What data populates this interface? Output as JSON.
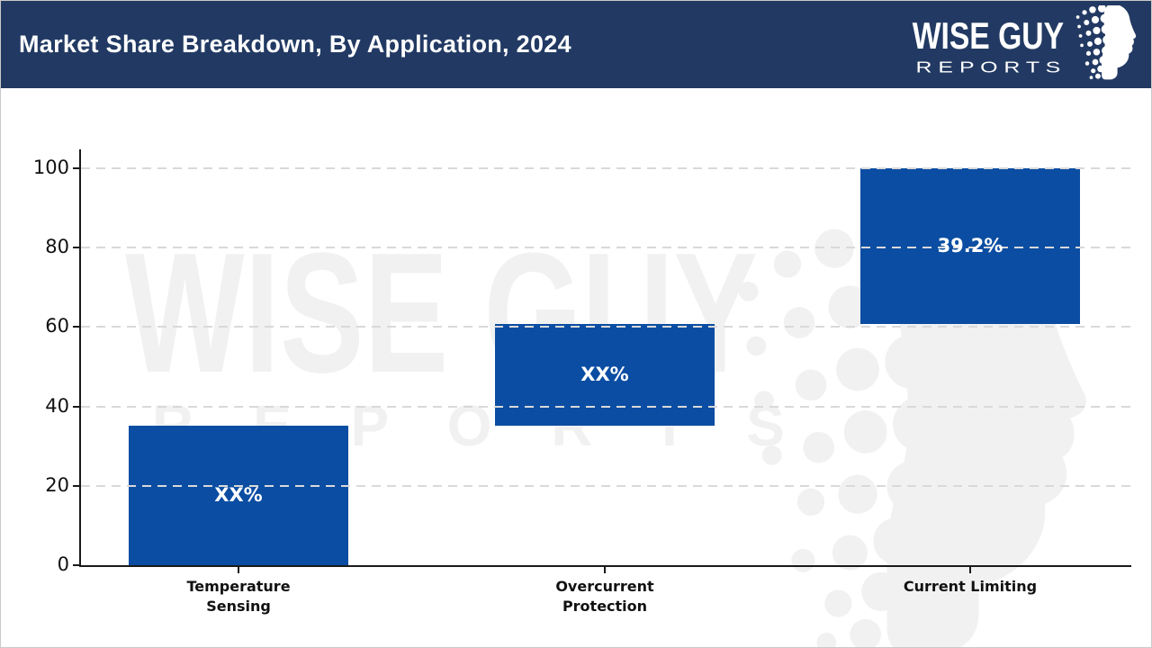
{
  "header": {
    "title": "Market Share Breakdown, By Application, 2024",
    "logo": {
      "line1": "WISE GUY",
      "line2": "R E P O R T S"
    }
  },
  "watermark": {
    "line1": "WISE GUY",
    "line2": "R E P O R T S"
  },
  "chart_data": {
    "type": "bar",
    "subtype": "waterfall",
    "title": "Market Share Breakdown, By Application, 2024",
    "categories": [
      "Temperature\nSensing",
      "Overcurrent\nProtection",
      "Current Limiting"
    ],
    "segments": [
      {
        "category": "Temperature Sensing",
        "start": 0,
        "end": 35.2,
        "value": 35.2,
        "label": "XX%"
      },
      {
        "category": "Overcurrent Protection",
        "start": 35.2,
        "end": 60.8,
        "value": 25.6,
        "label": "XX%"
      },
      {
        "category": "Current Limiting",
        "start": 60.8,
        "end": 100,
        "value": 39.2,
        "label": "39.2%"
      }
    ],
    "y_ticks": [
      0,
      20,
      40,
      60,
      80,
      100
    ],
    "ylim": [
      0,
      105
    ],
    "xlabel": "",
    "ylabel": "",
    "grid": "horizontal-dashed",
    "legend": "none",
    "bar_color": "#0B4DA2",
    "bar_label_color": "#FFFFFF",
    "axis_color": "#1A1A1A",
    "grid_color": "#D9D9D9"
  },
  "colors": {
    "header_bg": "#223A63",
    "page_bg": "#FFFFFF",
    "watermark": "#F1F1F1"
  }
}
